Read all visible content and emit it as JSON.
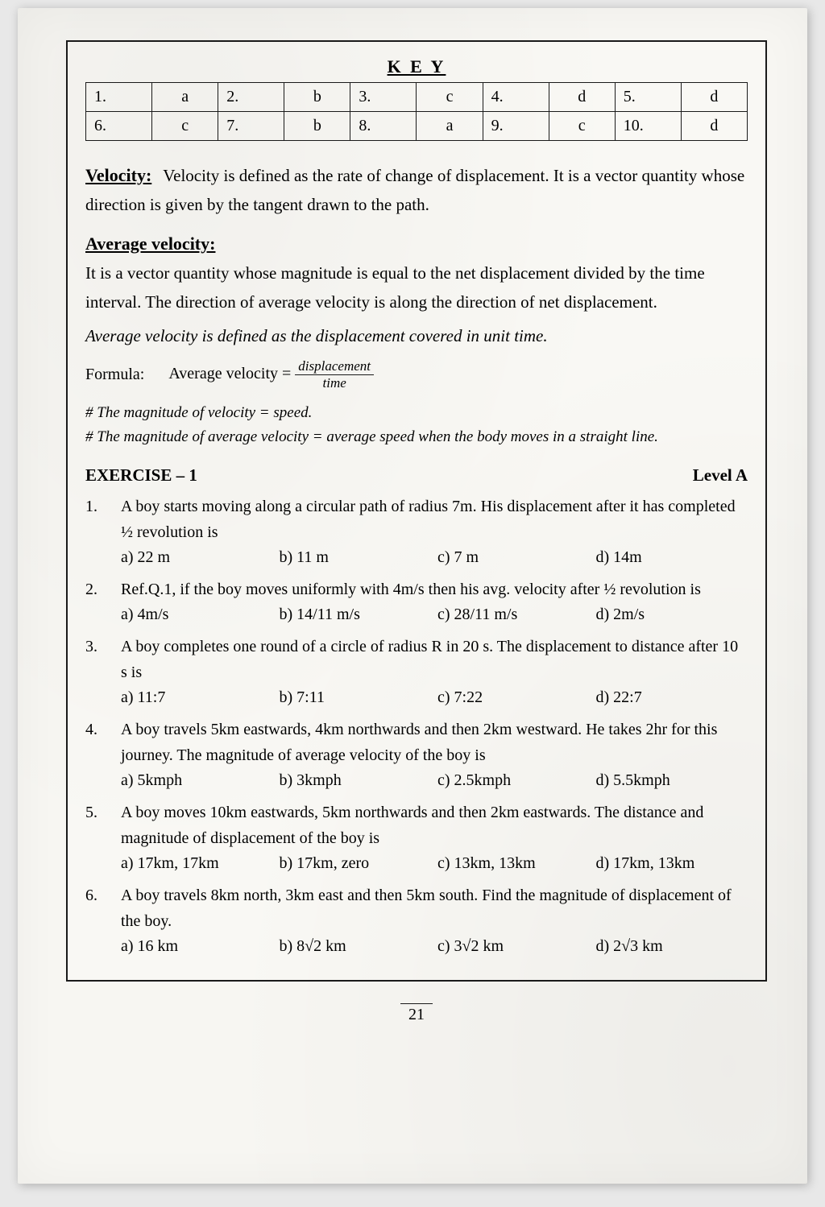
{
  "key": {
    "title": "K E Y",
    "rows": [
      [
        {
          "n": "1.",
          "a": "a"
        },
        {
          "n": "2.",
          "a": "b"
        },
        {
          "n": "3.",
          "a": "c"
        },
        {
          "n": "4.",
          "a": "d"
        },
        {
          "n": "5.",
          "a": "d"
        }
      ],
      [
        {
          "n": "6.",
          "a": "c"
        },
        {
          "n": "7.",
          "a": "b"
        },
        {
          "n": "8.",
          "a": "a"
        },
        {
          "n": "9.",
          "a": "c"
        },
        {
          "n": "10.",
          "a": "d"
        }
      ]
    ]
  },
  "velocity": {
    "heading": "Velocity:",
    "text": "Velocity is defined as the rate of change of displacement. It is a vector quantity whose direction is given by the tangent drawn to the path."
  },
  "avg_velocity": {
    "heading": "Average velocity:",
    "p1": "It is a vector quantity whose magnitude is equal to the net displacement divided by the time interval. The direction of average velocity is along the direction of net displacement.",
    "p2": "Average velocity is defined as the displacement covered in unit time.",
    "formula_label": "Formula:",
    "formula_lhs": "Average velocity =",
    "formula_top": "displacement",
    "formula_bot": "time",
    "note1": "# The magnitude of velocity = speed.",
    "note2": "# The magnitude of average velocity = average speed when the body moves in a straight line."
  },
  "exercise": {
    "title": "EXERCISE – 1",
    "level": "Level A",
    "questions": [
      {
        "n": "1.",
        "text": "A boy starts moving along a circular path of radius 7m. His displacement after it has completed ½ revolution is",
        "opts": [
          "a) 22 m",
          "b) 11 m",
          "c) 7 m",
          "d) 14m"
        ]
      },
      {
        "n": "2.",
        "text": "Ref.Q.1, if the boy moves uniformly with 4m/s then his avg. velocity after ½ revolution is",
        "opts": [
          "a) 4m/s",
          "b) 14/11 m/s",
          "c) 28/11 m/s",
          "d) 2m/s"
        ]
      },
      {
        "n": "3.",
        "text": "A boy completes one round of a circle of radius R in 20 s. The displacement to distance after 10 s is",
        "opts": [
          "a) 11:7",
          "b) 7:11",
          "c) 7:22",
          "d) 22:7"
        ]
      },
      {
        "n": "4.",
        "text": "A boy travels 5km eastwards, 4km northwards and then 2km westward. He takes 2hr for this journey. The magnitude of average velocity of the boy is",
        "opts": [
          "a) 5kmph",
          "b) 3kmph",
          "c) 2.5kmph",
          "d) 5.5kmph"
        ]
      },
      {
        "n": "5.",
        "text": "A boy moves 10km eastwards, 5km northwards and then 2km eastwards. The distance and magnitude of displacement of the boy is",
        "opts": [
          "a) 17km, 17km",
          "b) 17km, zero",
          "c) 13km, 13km",
          "d) 17km, 13km"
        ]
      },
      {
        "n": "6.",
        "text": "A boy travels 8km north, 3km east and then 5km south. Find the magnitude of displacement of the boy.",
        "opts": [
          "a) 16 km",
          "b) 8√2 km",
          "c) 3√2 km",
          "d) 2√3 km"
        ]
      }
    ]
  },
  "page_number": "21"
}
